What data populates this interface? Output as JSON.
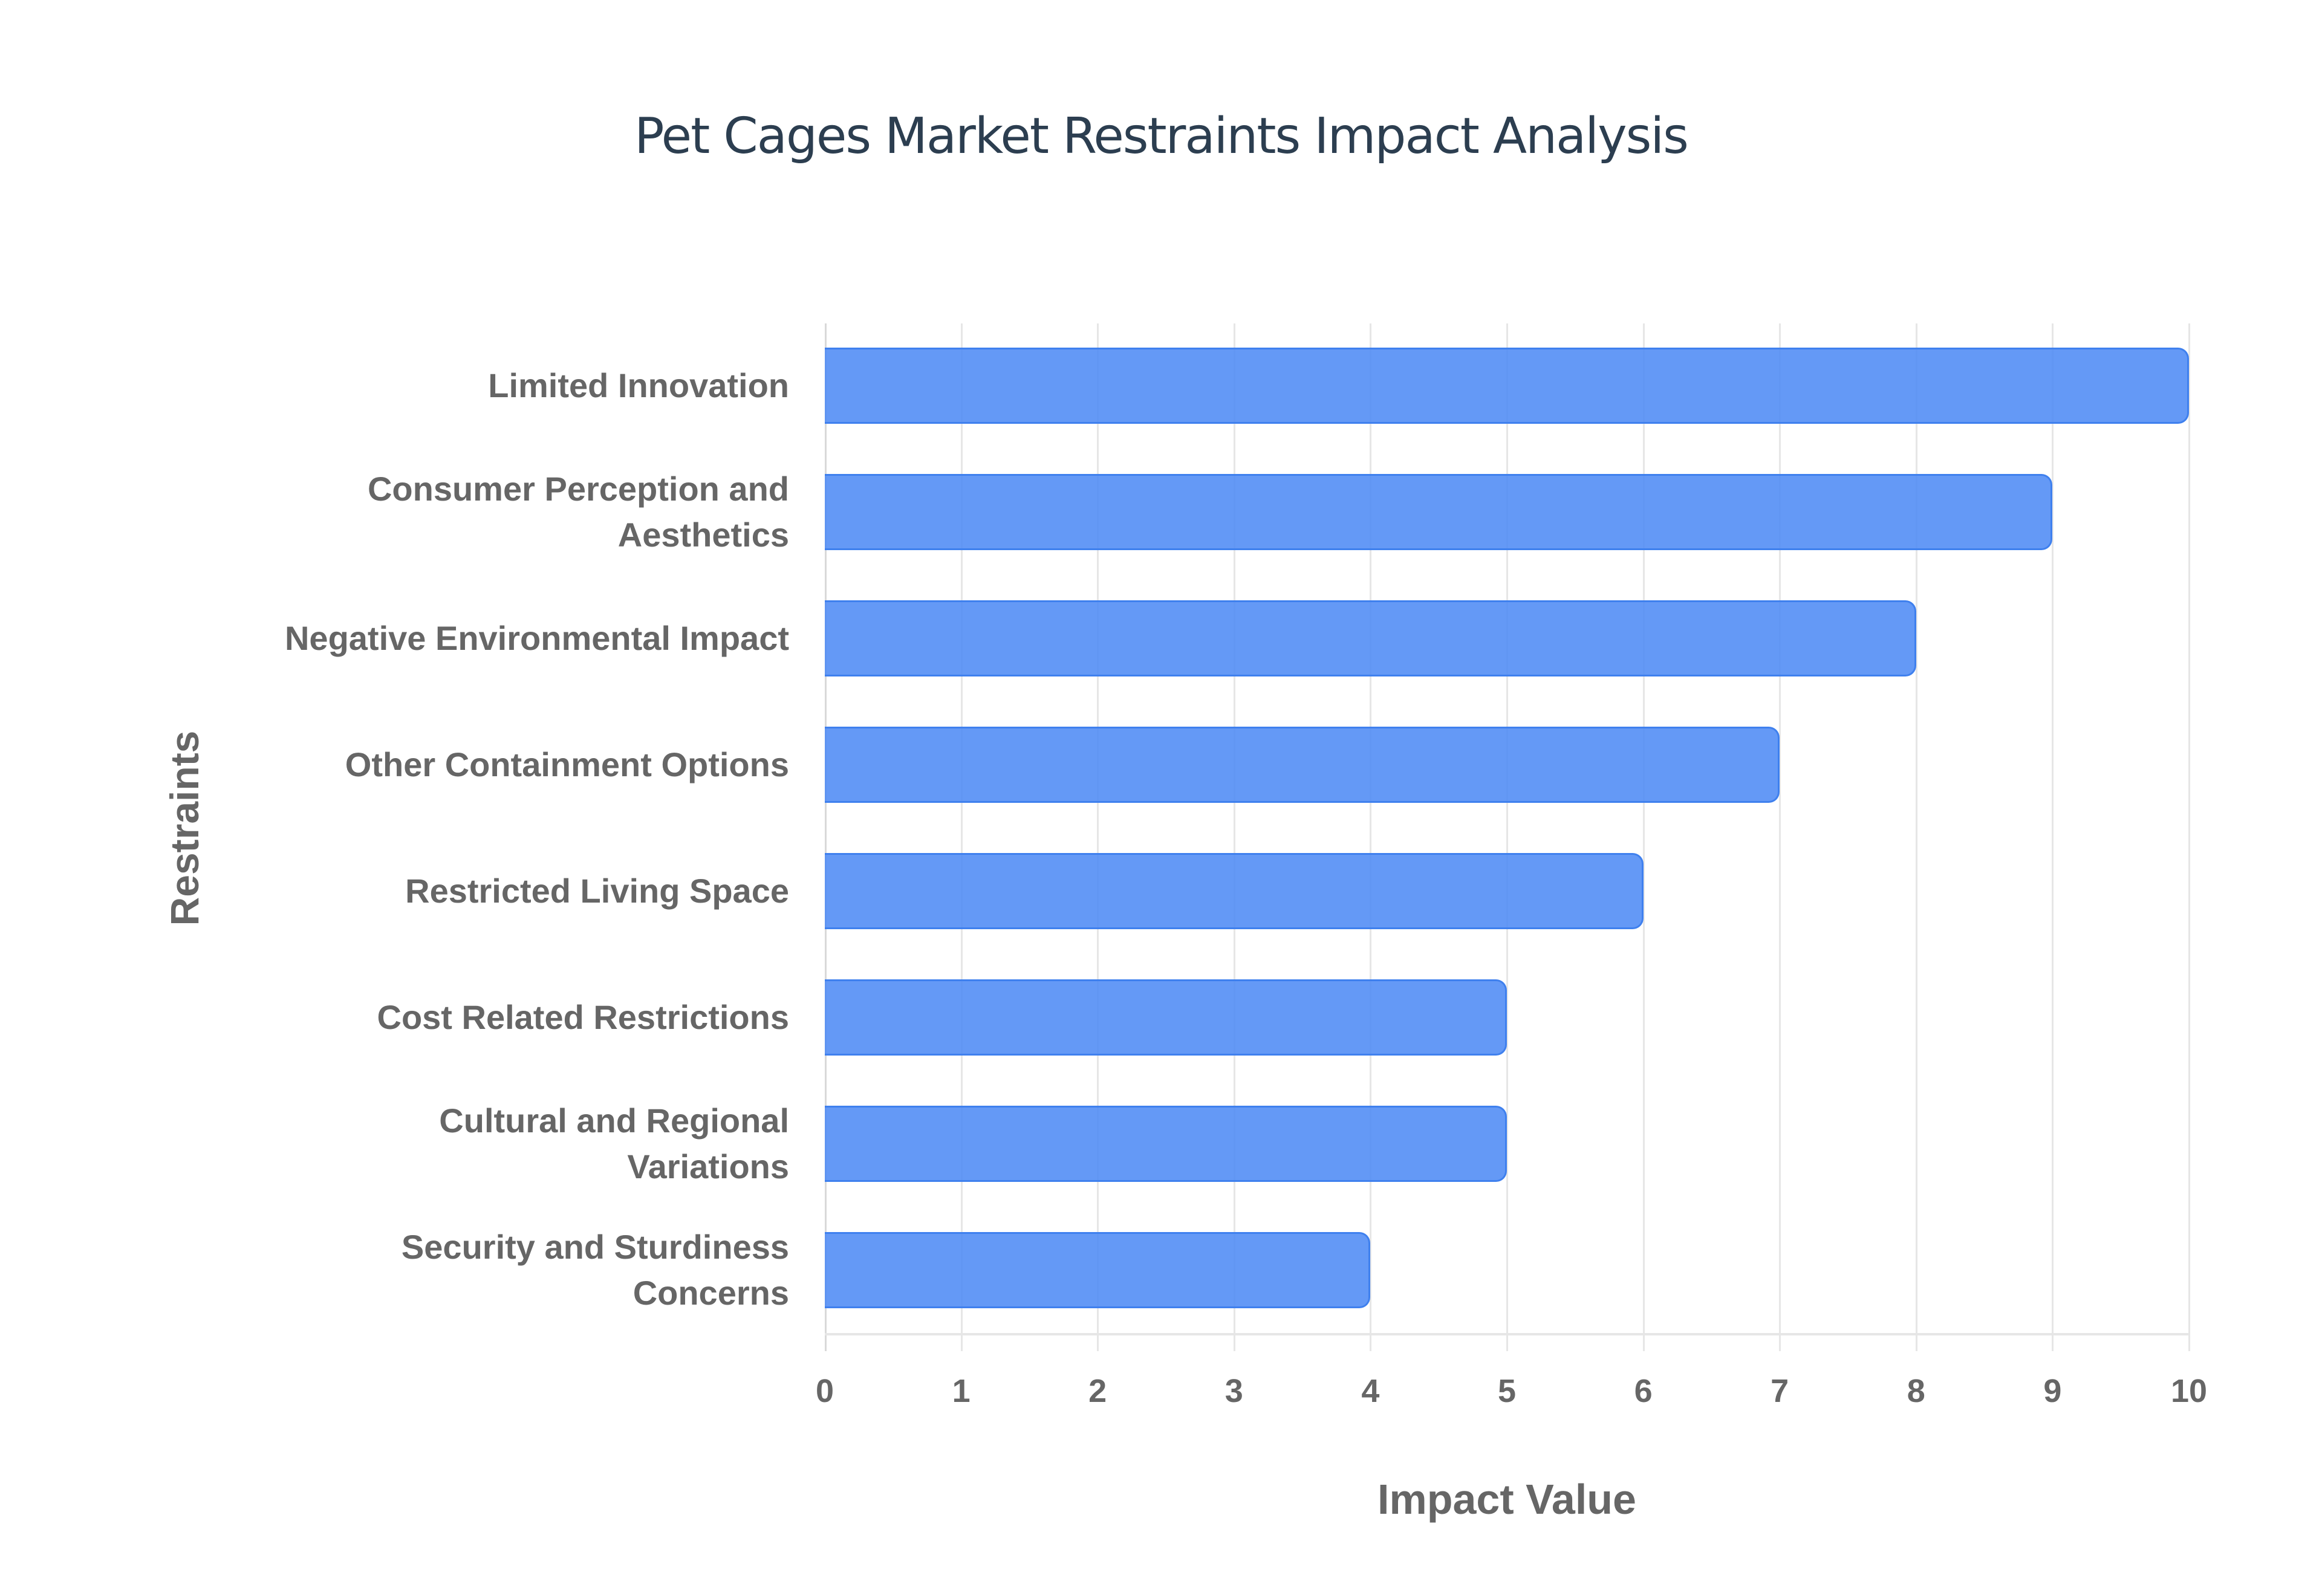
{
  "chart_data": {
    "type": "bar",
    "orientation": "horizontal",
    "title": "Pet Cages Market Restraints Impact Analysis",
    "xlabel": "Impact Value",
    "ylabel": "Restraints",
    "categories": [
      "Limited Innovation",
      "Consumer Perception and Aesthetics",
      "Negative Environmental Impact",
      "Other Containment Options",
      "Restricted Living Space",
      "Cost Related Restrictions",
      "Cultural and Regional Variations",
      "Security and Sturdiness Concerns"
    ],
    "values": [
      10,
      9,
      8,
      7,
      6,
      5,
      5,
      4
    ],
    "xlim": [
      0,
      10
    ],
    "xticks": [
      "0",
      "1",
      "2",
      "3",
      "4",
      "5",
      "6",
      "7",
      "8",
      "9",
      "10"
    ],
    "grid": true,
    "legend": "none",
    "bar_color": "#6199f5",
    "bar_border_color": "#3f80ee"
  },
  "labels": [
    [
      "Limited Innovation"
    ],
    [
      "Consumer Perception and",
      "Aesthetics"
    ],
    [
      "Negative Environmental Impact"
    ],
    [
      "Other Containment Options"
    ],
    [
      "Restricted Living Space"
    ],
    [
      "Cost Related Restrictions"
    ],
    [
      "Cultural and Regional",
      "Variations"
    ],
    [
      "Security and Sturdiness",
      "Concerns"
    ]
  ]
}
